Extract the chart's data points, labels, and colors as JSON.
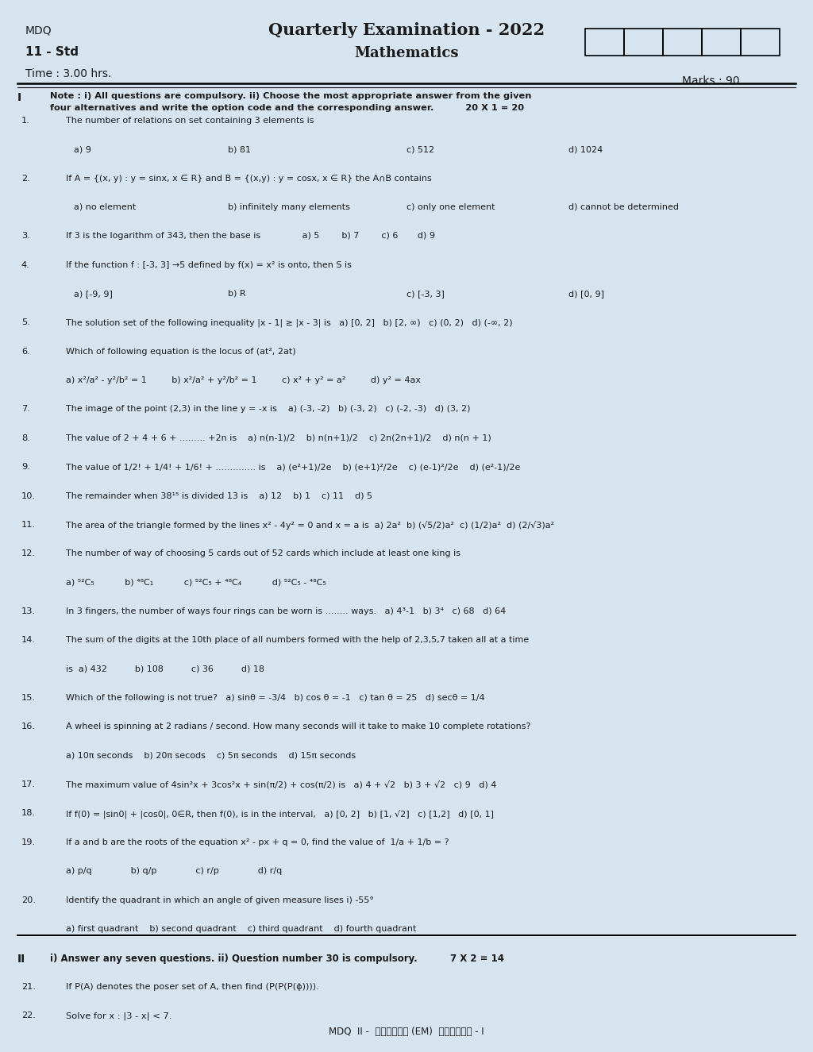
{
  "bg_color": "#d6e4f0",
  "text_color": "#1a1a1a",
  "header": {
    "mdq": "MDQ",
    "title_line1": "Quarterly Examination - 2022",
    "title_line2": "Mathematics",
    "std": "11 - Std",
    "time": "Time : 3.00 hrs.",
    "marks": "Marks : 90"
  },
  "footer": "MDQ  II -  கணிதம் (EM)  பக்கம் - I"
}
